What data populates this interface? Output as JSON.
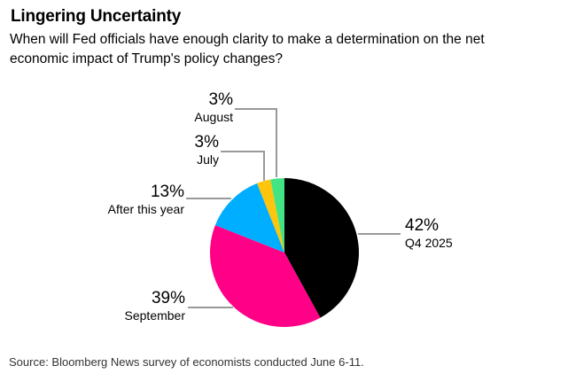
{
  "header": {
    "title": "Lingering Uncertainty",
    "subtitle_lines": [
      "When will Fed officials have enough clarity to make a determination on the net",
      "economic impact of Trump's policy changes?"
    ]
  },
  "chart_data": {
    "type": "pie",
    "title": "Lingering Uncertainty",
    "question": "When will Fed officials have enough clarity to make a determination on the net economic impact of Trump's policy changes?",
    "unit": "%",
    "direction": "clockwise",
    "start_angle_deg": 0,
    "legend_position": "outside-callout-labels",
    "leader_line_color": "#999999",
    "slices": [
      {
        "label": "Q4 2025",
        "value": 42,
        "pct_label": "42%",
        "color": "#000000"
      },
      {
        "label": "September",
        "value": 39,
        "pct_label": "39%",
        "color": "#FF0087"
      },
      {
        "label": "After this year",
        "value": 13,
        "pct_label": "13%",
        "color": "#00AEFF"
      },
      {
        "label": "July",
        "value": 3,
        "pct_label": "3%",
        "color": "#FFC40C"
      },
      {
        "label": "August",
        "value": 3,
        "pct_label": "3%",
        "color": "#42E483"
      }
    ]
  },
  "footer": {
    "source": "Source: Bloomberg News survey of economists conducted June 6-11."
  }
}
